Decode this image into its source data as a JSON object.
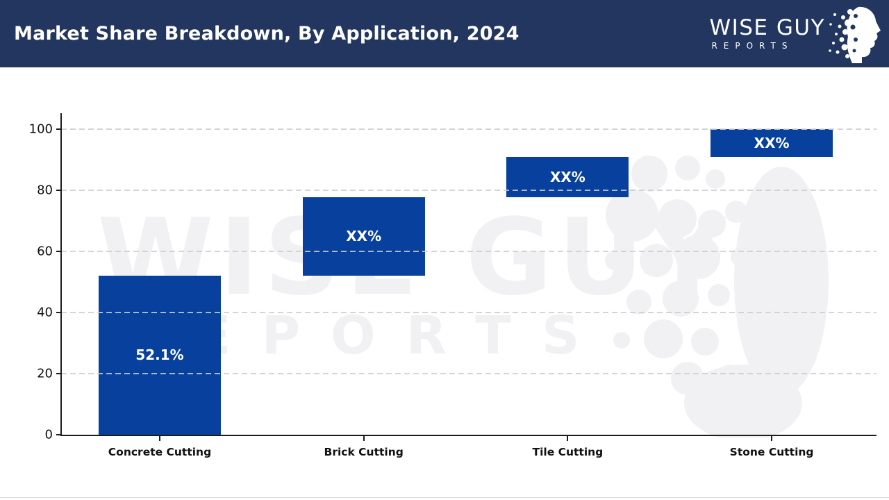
{
  "header": {
    "title": "Market Share Breakdown, By Application, 2024",
    "bg_color": "#22365f",
    "logo": {
      "line1": "WISE GUY",
      "line2": "REPORTS"
    }
  },
  "watermark": {
    "line1": "WISE GUY",
    "line2": "REPORTS"
  },
  "chart_data": {
    "type": "bar",
    "subtype": "waterfall",
    "title": "Market Share Breakdown, By Application, 2024",
    "categories": [
      "Concrete Cutting",
      "Brick Cutting",
      "Tile Cutting",
      "Stone Cutting"
    ],
    "segments": [
      {
        "category": "Concrete Cutting",
        "start": 0,
        "end": 52.1,
        "value": 52.1,
        "label": "52.1%"
      },
      {
        "category": "Brick Cutting",
        "start": 52.1,
        "end": 77.8,
        "value": 25.7,
        "label": "XX%"
      },
      {
        "category": "Tile Cutting",
        "start": 77.8,
        "end": 91.0,
        "value": 13.2,
        "label": "XX%"
      },
      {
        "category": "Stone Cutting",
        "start": 91.0,
        "end": 100,
        "value": 9.0,
        "label": "XX%"
      }
    ],
    "xlabel": "",
    "ylabel": "",
    "ylim": [
      0,
      100
    ],
    "yticks": [
      0,
      20,
      40,
      60,
      80,
      100
    ],
    "grid": "horizontal-dashed",
    "legend": "none",
    "bar_color": "#07419d",
    "bar_label_color": "#ffffff",
    "axis_color": "#1c1c1c",
    "gridline_color": "#d2d2d2"
  }
}
